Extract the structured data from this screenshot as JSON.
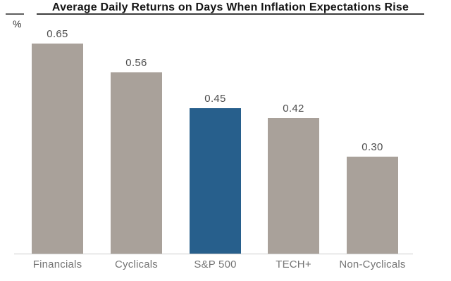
{
  "header": {
    "title": "Average Daily Returns on Days When Inflation Expectations Rise"
  },
  "y_axis": {
    "unit_label": "%"
  },
  "chart_data": {
    "type": "bar",
    "title": "Average Daily Returns on Days When Inflation Expectations Rise",
    "xlabel": "",
    "ylabel": "%",
    "categories": [
      "Financials",
      "Cyclicals",
      "S&P 500",
      "TECH+",
      "Non-Cyclicals"
    ],
    "values": [
      0.65,
      0.56,
      0.45,
      0.42,
      0.3
    ],
    "value_labels": [
      "0.65",
      "0.56",
      "0.45",
      "0.42",
      "0.30"
    ],
    "highlighted_category": "S&P 500",
    "ylim": [
      0,
      0.7
    ],
    "grid": false,
    "legend": false,
    "colors": {
      "bar_default": "#a9a19a",
      "bar_highlight": "#275f8c",
      "title_text": "#141414",
      "title_rule": "#3d3d3d",
      "value_label": "#4d4d4d",
      "category_label": "#757575",
      "baseline": "#cbcbcb",
      "background": "#ffffff"
    }
  }
}
